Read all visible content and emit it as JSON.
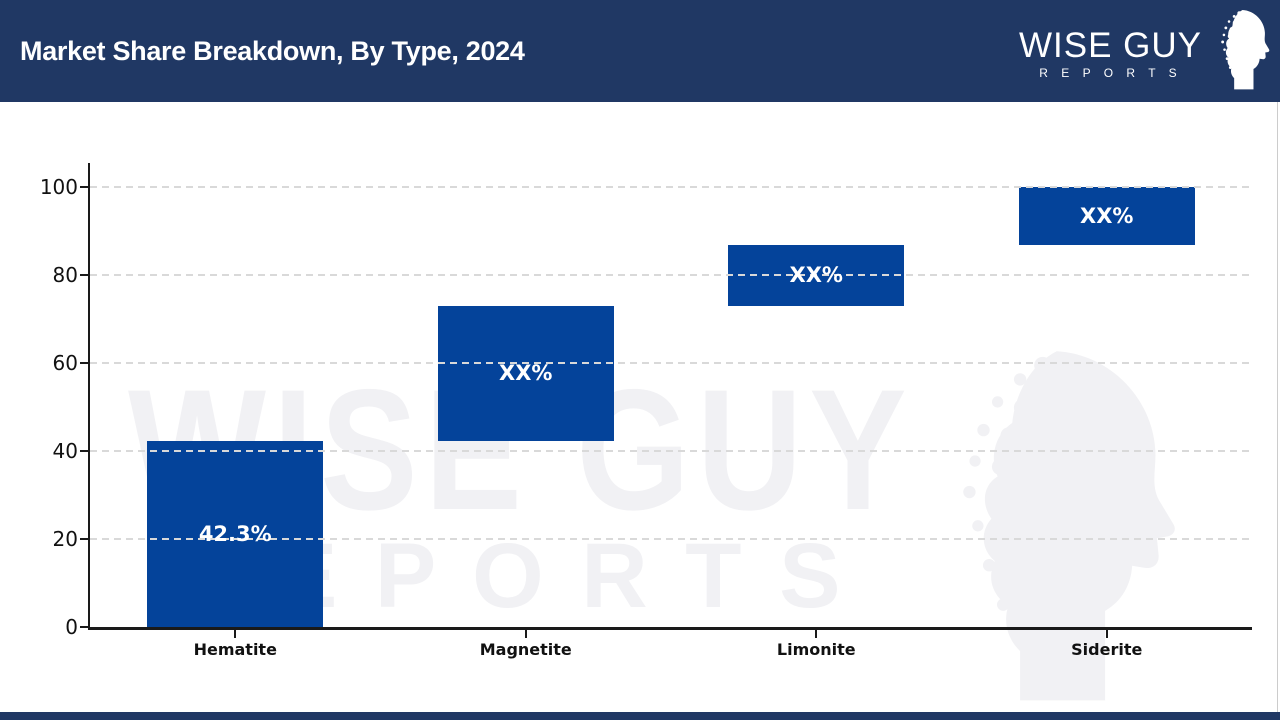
{
  "header": {
    "title": "Market Share Breakdown, By Type, 2024",
    "logo": {
      "brand": "WISE GUY",
      "sub": "R E P O R T S",
      "icon": "dotted-head-profile"
    }
  },
  "watermark": {
    "brand": "WISE GUY",
    "sub": "R E P O R T S",
    "icon": "dotted-head-profile"
  },
  "colors": {
    "header_bg": "#203864",
    "footer_bg": "#203864",
    "bar": "#04439a",
    "bar_label": "#ffffff",
    "grid": "#d9d9d9",
    "axis": "#1a1a1a",
    "watermark": "#f1f1f4",
    "right_border": "#cccccc"
  },
  "chart_data": {
    "type": "bar",
    "subtype": "waterfall",
    "title": "Market Share Breakdown, By Type, 2024",
    "categories": [
      "Hematite",
      "Magnetite",
      "Limonite",
      "Siderite"
    ],
    "segments": [
      {
        "category": "Hematite",
        "start": 0,
        "end": 42.3,
        "label": "42.3%"
      },
      {
        "category": "Magnetite",
        "start": 42.3,
        "end": 73.0,
        "label": "XX%"
      },
      {
        "category": "Limonite",
        "start": 73.0,
        "end": 86.8,
        "label": "XX%"
      },
      {
        "category": "Siderite",
        "start": 86.8,
        "end": 100,
        "label": "XX%"
      }
    ],
    "ylim": [
      0,
      100
    ],
    "yticks": [
      0,
      20,
      40,
      60,
      80,
      100
    ],
    "xlabel": "",
    "ylabel": "",
    "grid": "horizontal-dashed",
    "legend": "none",
    "bar_color": "#04439a",
    "bar_label_color": "#ffffff"
  }
}
